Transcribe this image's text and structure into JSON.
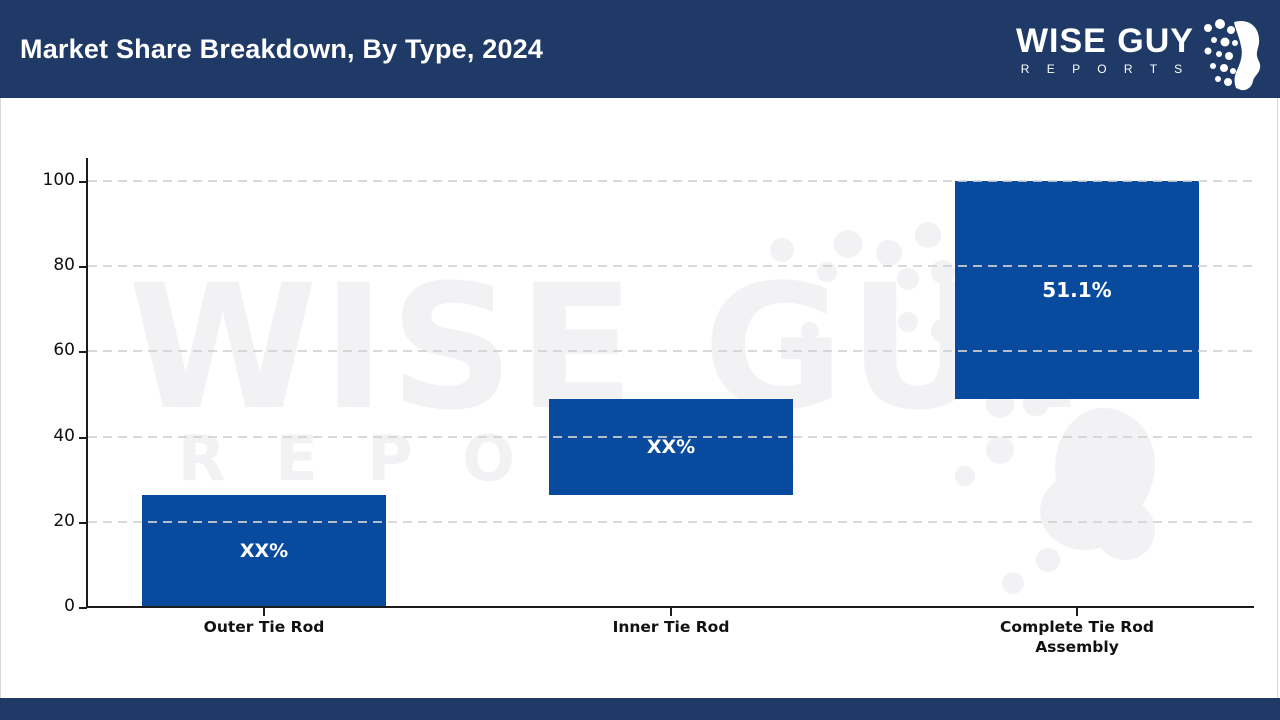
{
  "header": {
    "title": "Market Share Breakdown, By Type, 2024",
    "logo": {
      "line1": "WISE GUY",
      "line2": "R E P O R T S"
    }
  },
  "watermark": {
    "line1": "WISE GUY",
    "line2": "R E P O R T S"
  },
  "chart_data": {
    "type": "bar",
    "subtype": "floating-segment (waterfall-style market share)",
    "title": "Market Share Breakdown, By Type, 2024",
    "categories": [
      "Outer Tie Rod",
      "Inner Tie Rod",
      "Complete Tie Rod Assembly"
    ],
    "segments": [
      {
        "category": "Outer Tie Rod",
        "start": 0,
        "end": 26.4,
        "label": "XX%"
      },
      {
        "category": "Inner Tie Rod",
        "start": 26.4,
        "end": 48.9,
        "label": "XX%"
      },
      {
        "category": "Complete Tie Rod Assembly",
        "start": 48.9,
        "end": 100,
        "label": "51.1%"
      }
    ],
    "xlabel": "",
    "ylabel": "",
    "ylim": [
      0,
      100
    ],
    "yticks": [
      "0",
      "20",
      "40",
      "60",
      "80",
      "100"
    ],
    "grid": "horizontal dashed, drawn over bars",
    "legend": "none",
    "bar_color": "#084a9e"
  },
  "colors": {
    "header_bg": "#203a68",
    "footer_bg": "#203a68",
    "bar": "#084a9e",
    "gridline": "#d2d2d2",
    "axis": "#1c1c1c",
    "watermark": "#f2f2f4",
    "title_text": "#ffffff",
    "bar_label_text": "#ffffff"
  }
}
